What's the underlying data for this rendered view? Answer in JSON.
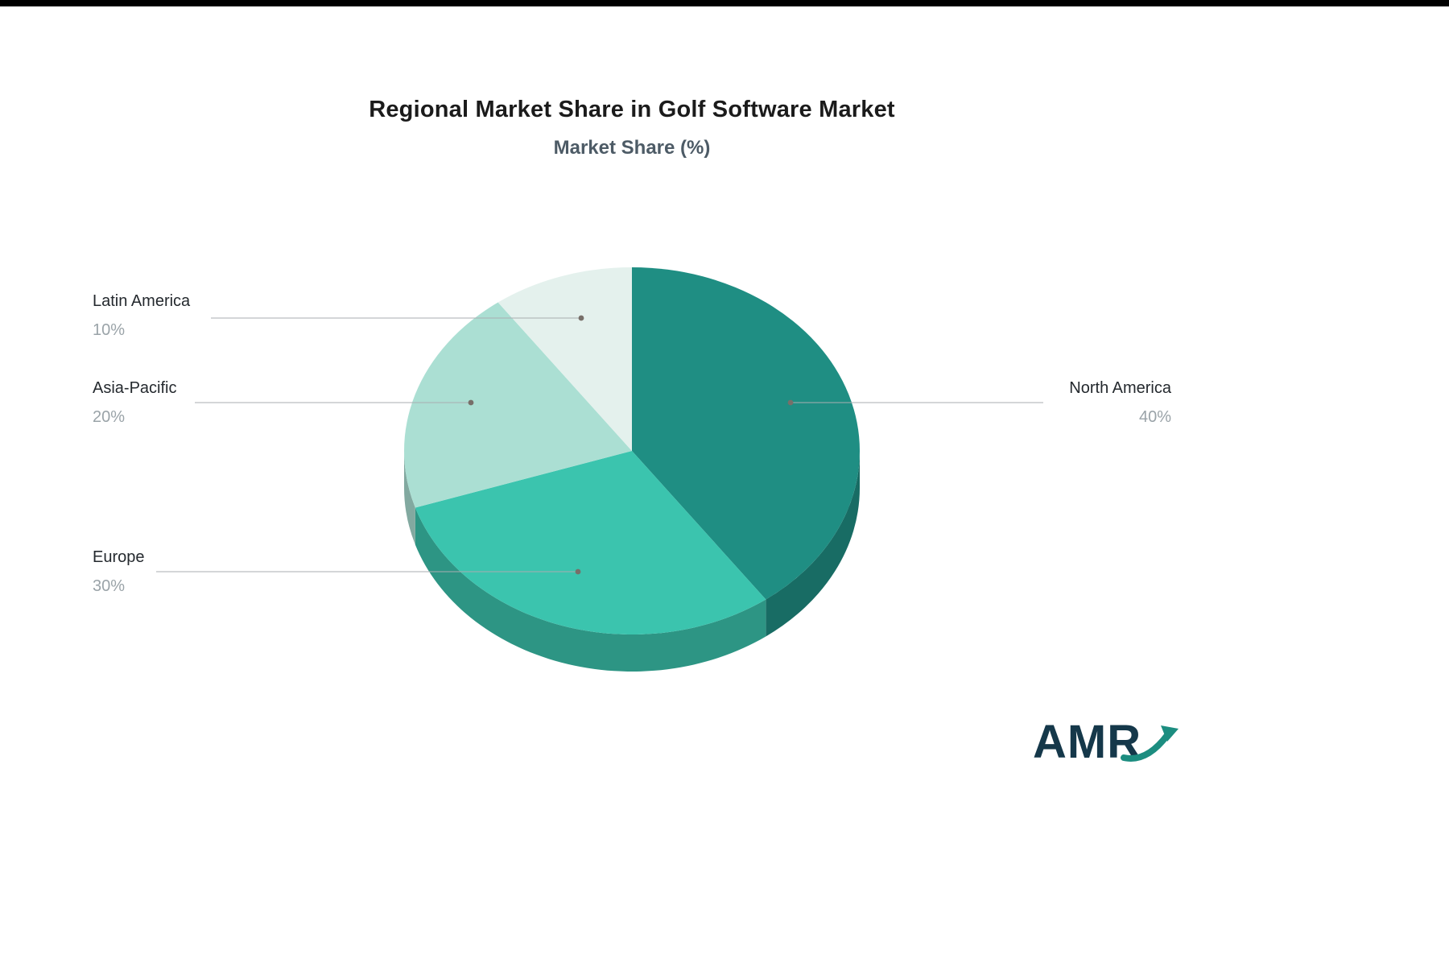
{
  "title": "Regional Market Share in Golf Software Market",
  "subtitle": "Market Share (%)",
  "chart_data": {
    "type": "pie",
    "title": "Regional Market Share in Golf Software Market",
    "subtitle": "Market Share (%)",
    "unit": "%",
    "direction": "clockwise",
    "start_angle_deg": 0,
    "effect": "3d",
    "legend_position": "none",
    "labels_style": "outside-with-leader-lines",
    "slices": [
      {
        "label": "North America",
        "value": 40,
        "value_label": "40%",
        "color": "#1f8e83",
        "label_side": "right"
      },
      {
        "label": "Europe",
        "value": 30,
        "value_label": "30%",
        "color": "#3bc4ae",
        "label_side": "left"
      },
      {
        "label": "Asia-Pacific",
        "value": 20,
        "value_label": "20%",
        "color": "#abdfd3",
        "label_side": "left"
      },
      {
        "label": "Latin America",
        "value": 10,
        "value_label": "10%",
        "color": "#e4f1ed",
        "label_side": "left"
      }
    ]
  },
  "logo": {
    "text": "AMR",
    "color": "#15384a",
    "arrow_color": "#1c8d80"
  }
}
